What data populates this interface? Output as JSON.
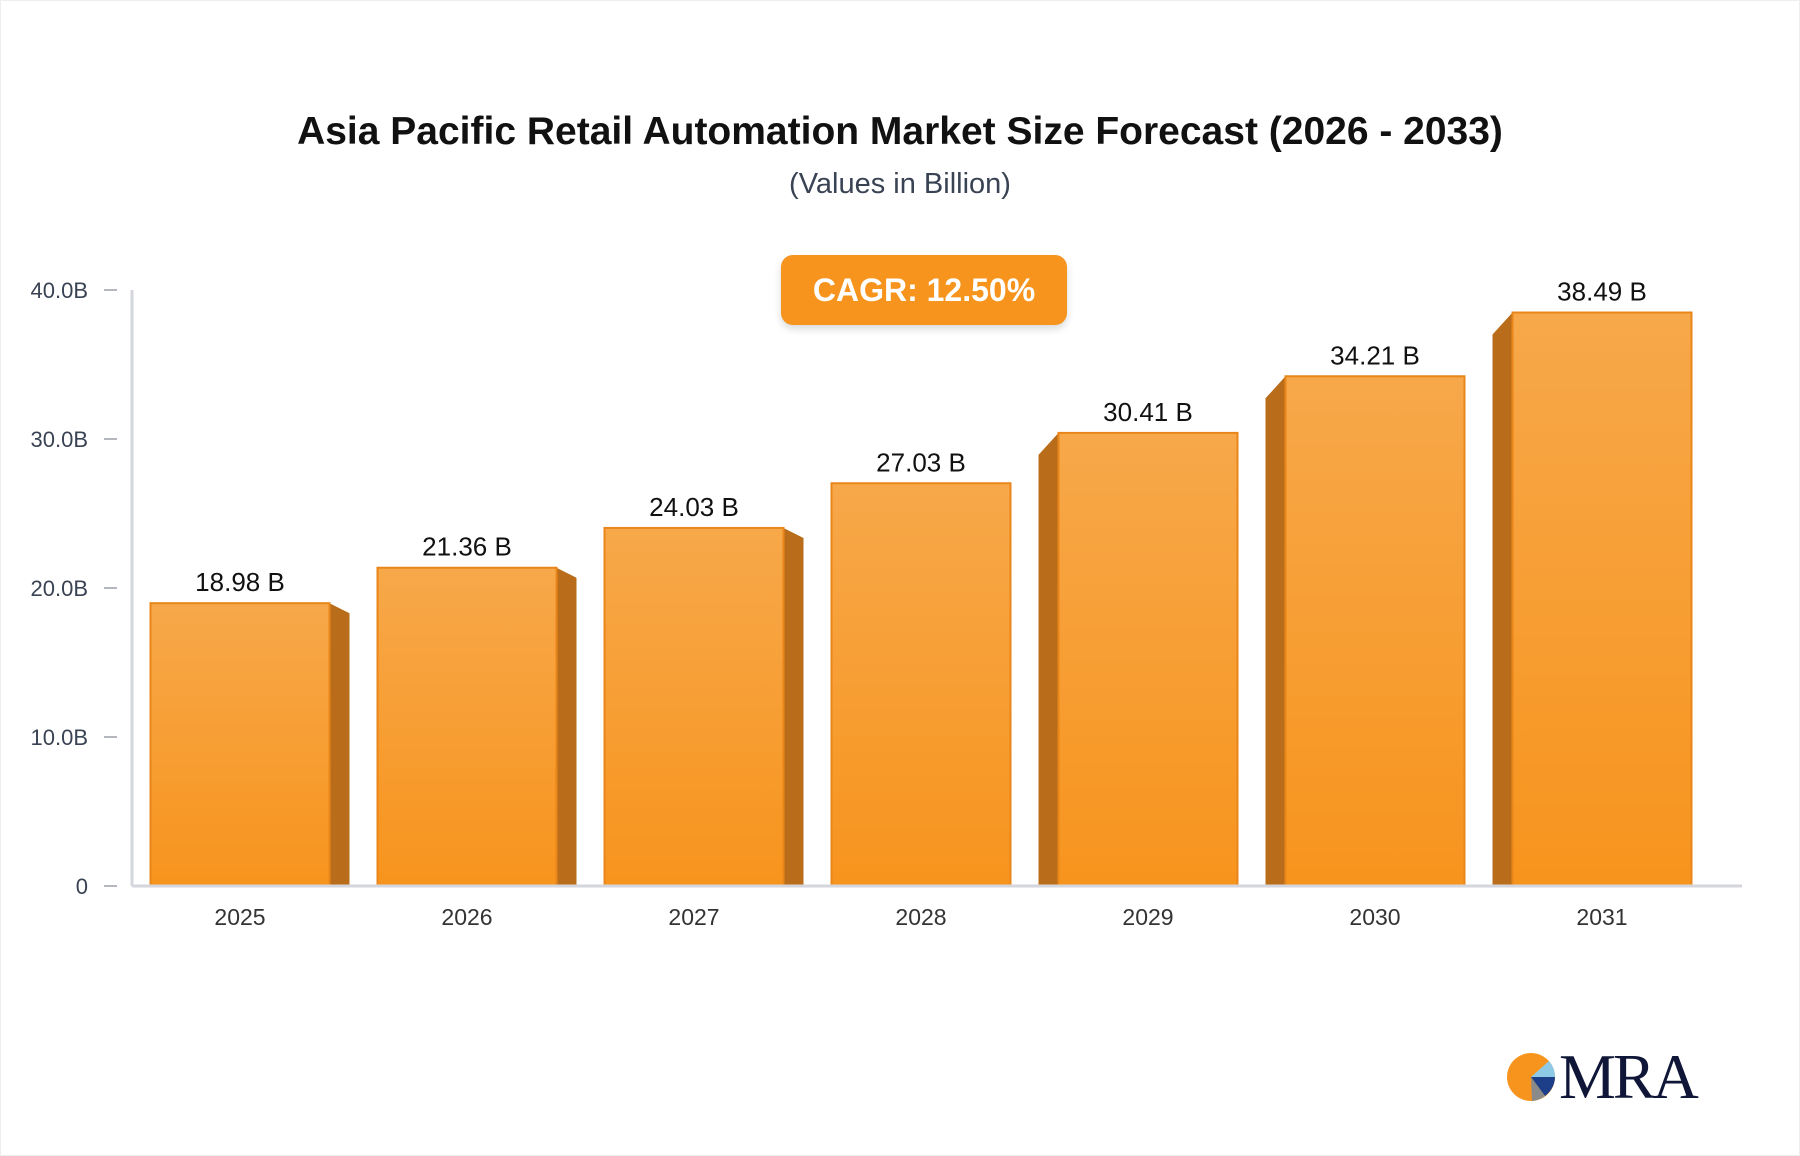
{
  "chart_data": {
    "type": "bar",
    "title": "Asia Pacific Retail Automation Market Size Forecast (2026 - 2033)",
    "subtitle": "(Values in Billion)",
    "annotation": "CAGR: 12.50%",
    "categories": [
      "2025",
      "2026",
      "2027",
      "2028",
      "2029",
      "2030",
      "2031"
    ],
    "values": [
      18.98,
      21.36,
      24.03,
      27.03,
      30.41,
      34.21,
      38.49
    ],
    "data_labels": [
      "18.98 B",
      "21.36 B",
      "24.03 B",
      "27.03 B",
      "30.41 B",
      "34.21 B",
      "38.49 B"
    ],
    "ylim": [
      0,
      40
    ],
    "yticks": [
      0,
      10,
      20,
      30,
      40
    ],
    "ytick_labels": [
      "0",
      "10.0B",
      "20.0B",
      "30.0B",
      "40.0B"
    ],
    "xlabel": "",
    "ylabel": "",
    "grid": false,
    "bar_color": "#f7941d",
    "bar_side_color": "#b96d1a"
  },
  "logo": {
    "text": "MRA"
  }
}
